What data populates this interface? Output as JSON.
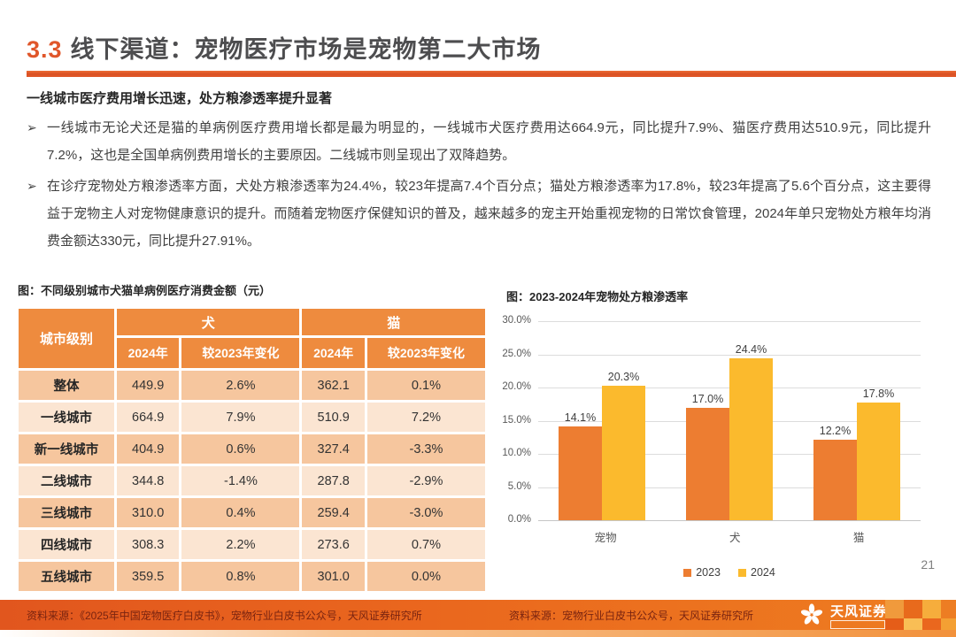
{
  "header": {
    "section_no": "3.3",
    "title": "线下渠道：宠物医疗市场是宠物第二大市场"
  },
  "intro": {
    "subtitle": "一线城市医疗费用增长迅速，处方粮渗透率提升显著",
    "bullet_marker": "➢",
    "bullets": [
      "一线城市无论犬还是猫的单病例医疗费用增长都是最为明显的，一线城市犬医疗费用达664.9元，同比提升7.9%、猫医疗费用达510.9元，同比提升7.2%，这也是全国单病例费用增长的主要原因。二线城市则呈现出了双降趋势。",
      "在诊疗宠物处方粮渗透率方面，犬处方粮渗透率为24.4%，较23年提高7.4个百分点；猫处方粮渗透率为17.8%，较23年提高了5.6个百分点，这主要得益于宠物主人对宠物健康意识的提升。而随着宠物医疗保健知识的普及，越来越多的宠主开始重视宠物的日常饮食管理，2024年单只宠物处方粮年均消费金额达330元，同比提升27.91%。"
    ]
  },
  "table": {
    "caption": "图：不同级别城市犬猫单病例医疗消费金额（元）",
    "corner_header": "城市级别",
    "group_headers": {
      "dog": "犬",
      "cat": "猫"
    },
    "sub_headers": [
      "2024年",
      "较2023年变化",
      "2024年",
      "较2023年变化"
    ],
    "rows": [
      {
        "label": "整体",
        "values": [
          "449.9",
          "2.6%",
          "362.1",
          "0.1%"
        ]
      },
      {
        "label": "一线城市",
        "values": [
          "664.9",
          "7.9%",
          "510.9",
          "7.2%"
        ]
      },
      {
        "label": "新一线城市",
        "values": [
          "404.9",
          "0.6%",
          "327.4",
          "-3.3%"
        ]
      },
      {
        "label": "二线城市",
        "values": [
          "344.8",
          "-1.4%",
          "287.8",
          "-2.9%"
        ]
      },
      {
        "label": "三线城市",
        "values": [
          "310.0",
          "0.4%",
          "259.4",
          "-3.0%"
        ]
      },
      {
        "label": "四线城市",
        "values": [
          "308.3",
          "2.2%",
          "273.6",
          "0.7%"
        ]
      },
      {
        "label": "五线城市",
        "values": [
          "359.5",
          "0.8%",
          "301.0",
          "0.0%"
        ]
      }
    ]
  },
  "chart_caption": "图：2023-2024年宠物处方粮渗透率",
  "chart_data": {
    "type": "bar",
    "title": "图：2023-2024年宠物处方粮渗透率",
    "categories": [
      "宠物",
      "犬",
      "猫"
    ],
    "series": [
      {
        "name": "2023",
        "color": "#ed7d31",
        "values": [
          14.1,
          17.0,
          12.2
        ]
      },
      {
        "name": "2024",
        "color": "#fbba2d",
        "values": [
          20.3,
          24.4,
          17.8
        ]
      }
    ],
    "value_labels": [
      [
        "14.1%",
        "17.0%",
        "12.2%"
      ],
      [
        "20.3%",
        "24.4%",
        "17.8%"
      ]
    ],
    "xlabel": "",
    "ylabel": "",
    "ylim": [
      0,
      30
    ],
    "yticks": [
      "30.0%",
      "25.0%",
      "20.0%",
      "15.0%",
      "10.0%",
      "5.0%",
      "0.0%"
    ],
    "grid": true,
    "legend_position": "bottom"
  },
  "page_number": "21",
  "footer": {
    "source_left": "资料来源：《2025年中国宠物医疗白皮书》，宠物行业白皮书公众号，天风证券研究所",
    "source_right": "资料来源：宠物行业白皮书公众号，天风证券研究所",
    "brand_name": "天风证券"
  },
  "colors": {
    "accent_rule": "#d94f22",
    "title_number": "#e0562a",
    "table_header_bg": "#ee8b3e",
    "table_row_dark": "#f6c69e",
    "table_row_light": "#fbe5d2",
    "series_2023": "#ed7d31",
    "series_2024": "#fbba2d",
    "footer_gradient_left": "#e1561e",
    "footer_gradient_right": "#ee7d20",
    "footer_text": "#7a2410"
  }
}
